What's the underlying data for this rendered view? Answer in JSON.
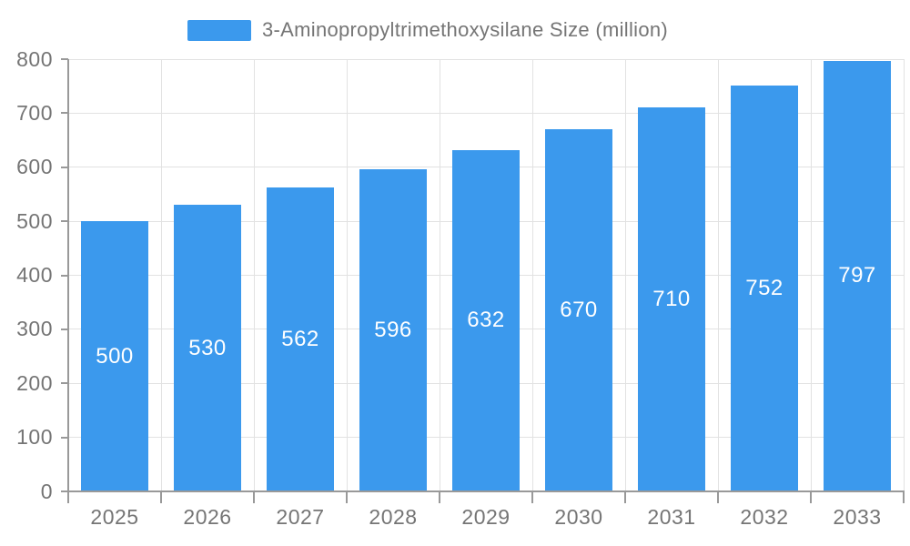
{
  "chart_data": {
    "type": "bar",
    "title": "3-Aminopropyltrimethoxysilane Size (million)",
    "categories": [
      "2025",
      "2026",
      "2027",
      "2028",
      "2029",
      "2030",
      "2031",
      "2032",
      "2033"
    ],
    "values": [
      500,
      530,
      562,
      596,
      632,
      670,
      710,
      752,
      797
    ],
    "xlabel": "",
    "ylabel": "",
    "ylim": [
      0,
      800
    ],
    "ytick_step": 100,
    "yticks": [
      0,
      100,
      200,
      300,
      400,
      500,
      600,
      700,
      800
    ],
    "grid": true,
    "legend": {
      "label": "3-Aminopropyltrimethoxysilane Size (million)",
      "position": "top"
    },
    "value_labels": {
      "position": "inside-center"
    }
  },
  "colors": {
    "bar": "#3B99ED",
    "grid": "#E2E2E2",
    "axis": "#999999",
    "label_text": "#757575",
    "value_text": "#FFFFFF",
    "background": "#FFFFFF"
  }
}
